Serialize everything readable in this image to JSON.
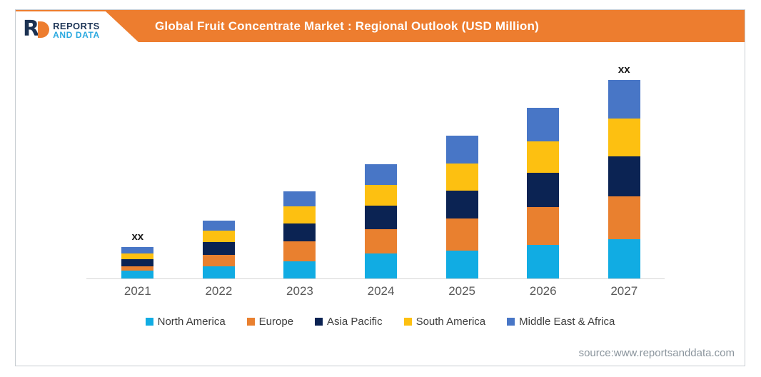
{
  "header": {
    "logo": {
      "icon": "RD-monogram",
      "r_letter": "R",
      "line1": "REPORTS",
      "line2": "AND DATA"
    }
  },
  "chart_data": {
    "type": "bar",
    "stacked": true,
    "title": "Global Fruit Concentrate Market : Regional Outlook (USD Million)",
    "xlabel": "",
    "ylabel": "",
    "categories": [
      "2021",
      "2022",
      "2023",
      "2024",
      "2025",
      "2026",
      "2027"
    ],
    "series": [
      {
        "name": "North America",
        "color": "#11ACE3",
        "values": [
          11,
          17,
          24,
          35,
          39,
          47,
          55
        ]
      },
      {
        "name": "Europe",
        "color": "#E9802F",
        "values": [
          6,
          16,
          28,
          34,
          45,
          53,
          60
        ]
      },
      {
        "name": "Asia Pacific",
        "color": "#0B2353",
        "values": [
          10,
          18,
          25,
          33,
          39,
          48,
          56
        ]
      },
      {
        "name": "South America",
        "color": "#FDC011",
        "values": [
          8,
          16,
          24,
          29,
          38,
          44,
          53
        ]
      },
      {
        "name": "Middle East & Africa",
        "color": "#4876C6",
        "values": [
          9,
          14,
          21,
          29,
          39,
          47,
          54
        ]
      }
    ],
    "data_labels": [
      {
        "category_index": 0,
        "text": "xx"
      },
      {
        "category_index": 6,
        "text": "xx"
      }
    ],
    "units": "px-estimated heights; actual values masked as 'xx' in source image",
    "ylim": [
      0,
      300
    ],
    "grid": false,
    "y_axis_ticks": "none",
    "legend_position": "bottom"
  },
  "footer": {
    "source_label": "source:www.reportsanddata.com"
  },
  "theme": {
    "banner_bg": "#ED7D2F",
    "banner_text": "#ffffff",
    "axis_line": "#D6D6D6",
    "x_label_color": "#595959",
    "legend_text_color": "#3D3D3D",
    "source_text_color": "#8B959D"
  }
}
